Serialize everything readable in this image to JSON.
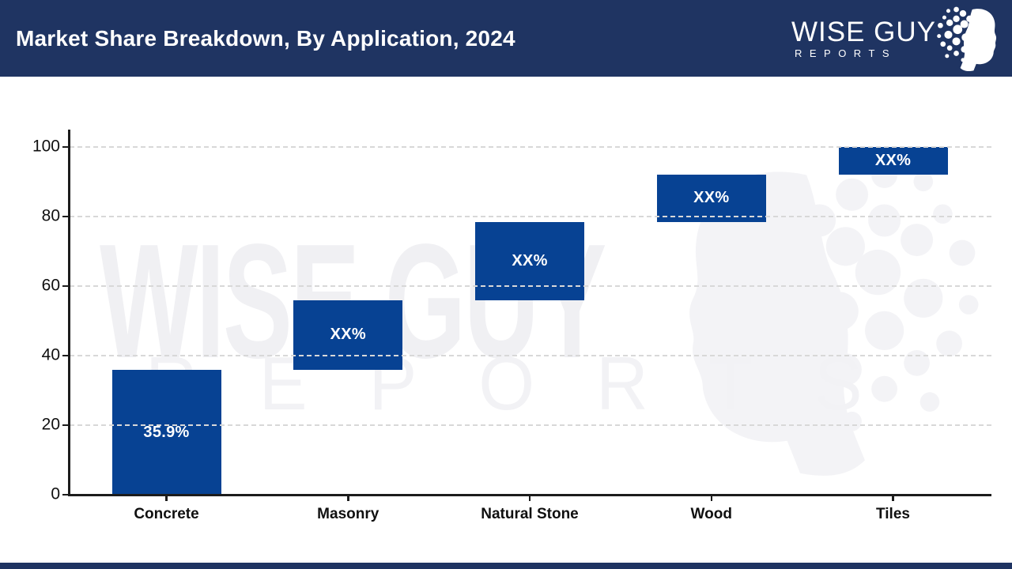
{
  "header": {
    "title": "Market Share Breakdown, By Application, 2024"
  },
  "logo": {
    "primary": "WISE GUY",
    "secondary": "REPORTS"
  },
  "watermark": {
    "line1": "WISE GUY",
    "line2": "REPORTS"
  },
  "colors": {
    "header_bg": "#1f3462",
    "footer_bg": "#1f3462",
    "bar": "#074293",
    "bar_label": "#ffffff",
    "gridline": "#d8d8d8",
    "axis": "#1c1c1c",
    "watermark": "#f0f0f3"
  },
  "chart_data": {
    "type": "bar",
    "subtype": "stacked-waterfall",
    "title": "Market Share Breakdown, By Application, 2024",
    "xlabel": "",
    "ylabel": "",
    "categories": [
      "Concrete",
      "Masonry",
      "Natural Stone",
      "Wood",
      "Tiles"
    ],
    "series": [
      {
        "name": "Concrete",
        "start": 0,
        "end": 35.9,
        "label": "35.9%"
      },
      {
        "name": "Masonry",
        "start": 35.9,
        "end": 56,
        "label": "XX%"
      },
      {
        "name": "Natural Stone",
        "start": 56,
        "end": 78.5,
        "label": "XX%"
      },
      {
        "name": "Wood",
        "start": 78.5,
        "end": 92,
        "label": "XX%"
      },
      {
        "name": "Tiles",
        "start": 92,
        "end": 100,
        "label": "XX%"
      }
    ],
    "yticks": [
      0,
      20,
      40,
      60,
      80,
      100
    ],
    "ylim": [
      0,
      105
    ],
    "grid": "dashed-horizontal-over-bars",
    "legend": "none",
    "bar_color": "#074293",
    "value_label_color": "#ffffff"
  }
}
